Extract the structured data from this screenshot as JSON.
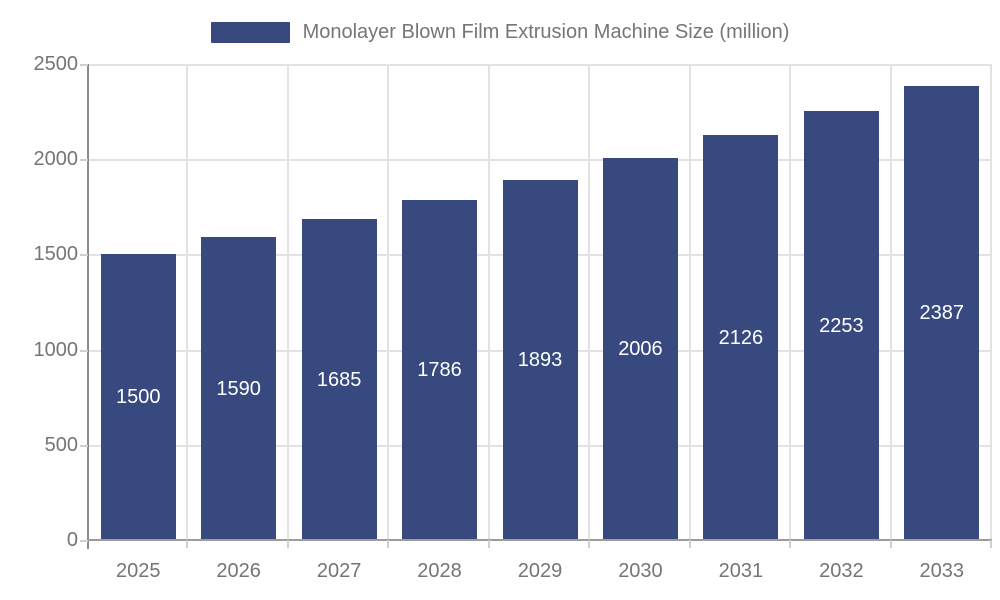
{
  "legend": {
    "label": "Monolayer Blown Film Extrusion Machine Size (million)",
    "swatch_color": "#384980"
  },
  "chart_data": {
    "type": "bar",
    "title": "Monolayer Blown Film Extrusion Machine Size (million)",
    "categories": [
      "2025",
      "2026",
      "2027",
      "2028",
      "2029",
      "2030",
      "2031",
      "2032",
      "2033"
    ],
    "values": [
      1500,
      1590,
      1685,
      1786,
      1893,
      2006,
      2126,
      2253,
      2387
    ],
    "xlabel": "",
    "ylabel": "",
    "ylim": [
      0,
      2500
    ],
    "yticks": [
      0,
      500,
      1000,
      1500,
      2000,
      2500
    ],
    "grid": true,
    "legend_position": "top",
    "bar_color": "#384980",
    "bar_label_color": "#ffffff",
    "axis_text_color": "#757575",
    "gridline_color": "#e3e3e3"
  }
}
